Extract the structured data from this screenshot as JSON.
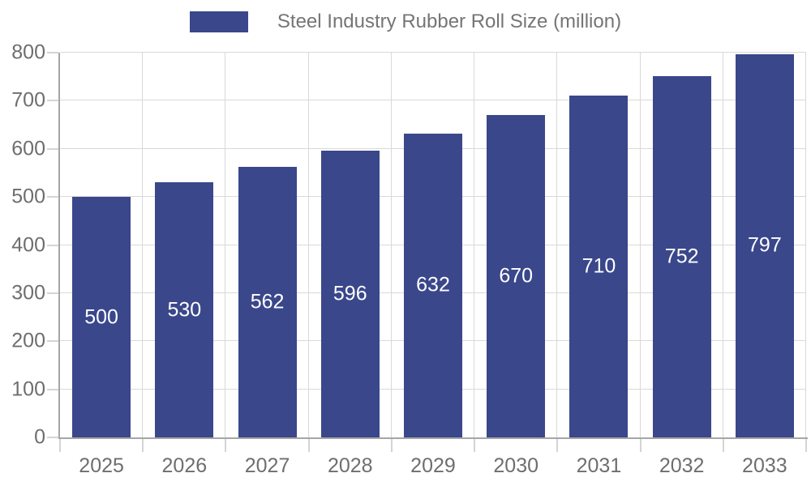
{
  "chart_data": {
    "type": "bar",
    "title": "Steel Industry Rubber Roll Size (million)",
    "legend_entries": [
      "Steel Industry Rubber Roll Size (million)"
    ],
    "legend_position": "top-center",
    "categories": [
      "2025",
      "2026",
      "2027",
      "2028",
      "2029",
      "2030",
      "2031",
      "2032",
      "2033"
    ],
    "values": [
      500,
      530,
      562,
      596,
      632,
      670,
      710,
      752,
      797
    ],
    "xlabel": "",
    "ylabel": "",
    "ylim": [
      0,
      800
    ],
    "yticks": [
      0,
      100,
      200,
      300,
      400,
      500,
      600,
      700,
      800
    ],
    "grid": "horizontal-and-vertical",
    "bar_label_position": "inside-center"
  },
  "colors": {
    "bar": "#3A478B",
    "bar_label": "#FFFFFF",
    "grid": "#D9D9D9",
    "axis": "#A6A6A6",
    "tick": "#D4D4D4",
    "tick_label": "#6E6E6E",
    "legend_text": "#757575",
    "background": "#FFFFFF"
  }
}
